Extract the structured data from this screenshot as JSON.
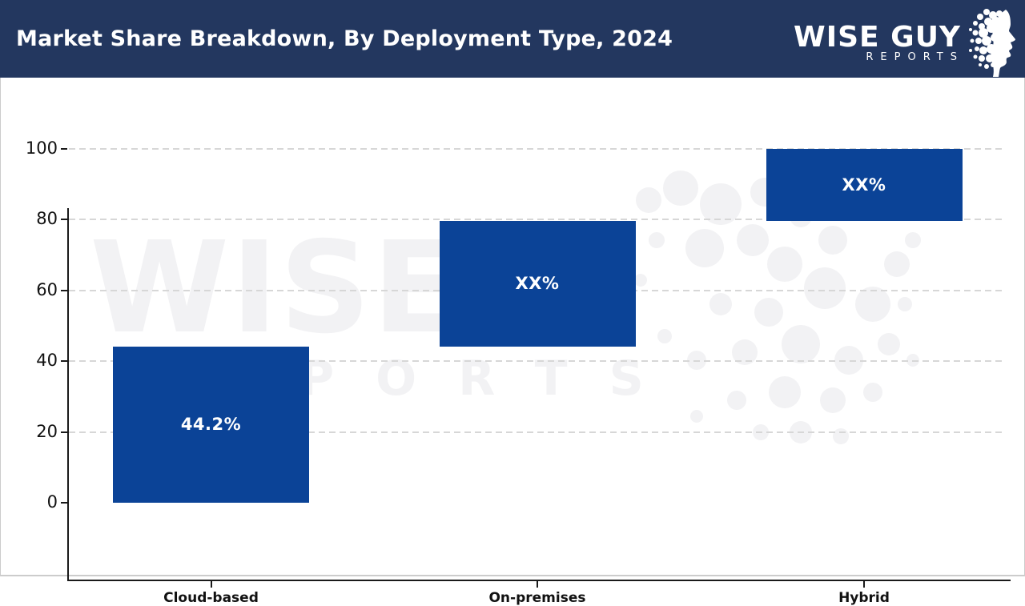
{
  "header": {
    "title": "Market Share Breakdown, By Deployment Type, 2024",
    "logo_line1": "WISE GUY",
    "logo_line2": "REPORTS"
  },
  "watermark": {
    "word1": "WISE",
    "word2": "REPORTS"
  },
  "colors": {
    "header_navy": "#23375f",
    "bar_blue": "#0b4397",
    "gridline_gray": "#d7d7d7",
    "watermark_gray": "#f2f2f4",
    "axis_black": "#1a1a1a",
    "label_white": "#ffffff"
  },
  "chart_data": {
    "type": "bar",
    "variant": "waterfall",
    "title": "Market Share Breakdown, By Deployment Type, 2024",
    "categories": [
      "Cloud-based",
      "On-premises",
      "Hybrid"
    ],
    "segments": [
      {
        "category": "Cloud-based",
        "start": 0,
        "end": 44.2,
        "label": "44.2%"
      },
      {
        "category": "On-premises",
        "start": 44.2,
        "end": 79.6,
        "label": "XX%"
      },
      {
        "category": "Hybrid",
        "start": 79.7,
        "end": 100,
        "label": "XX%"
      }
    ],
    "ylim": [
      0,
      100
    ],
    "yticks": [
      0,
      20,
      40,
      60,
      80,
      100
    ],
    "xlabel": "",
    "ylabel": "",
    "grid": "horizontal-dashed",
    "legend": "none",
    "bar_color": "#0b4397",
    "value_label_color": "#ffffff"
  }
}
